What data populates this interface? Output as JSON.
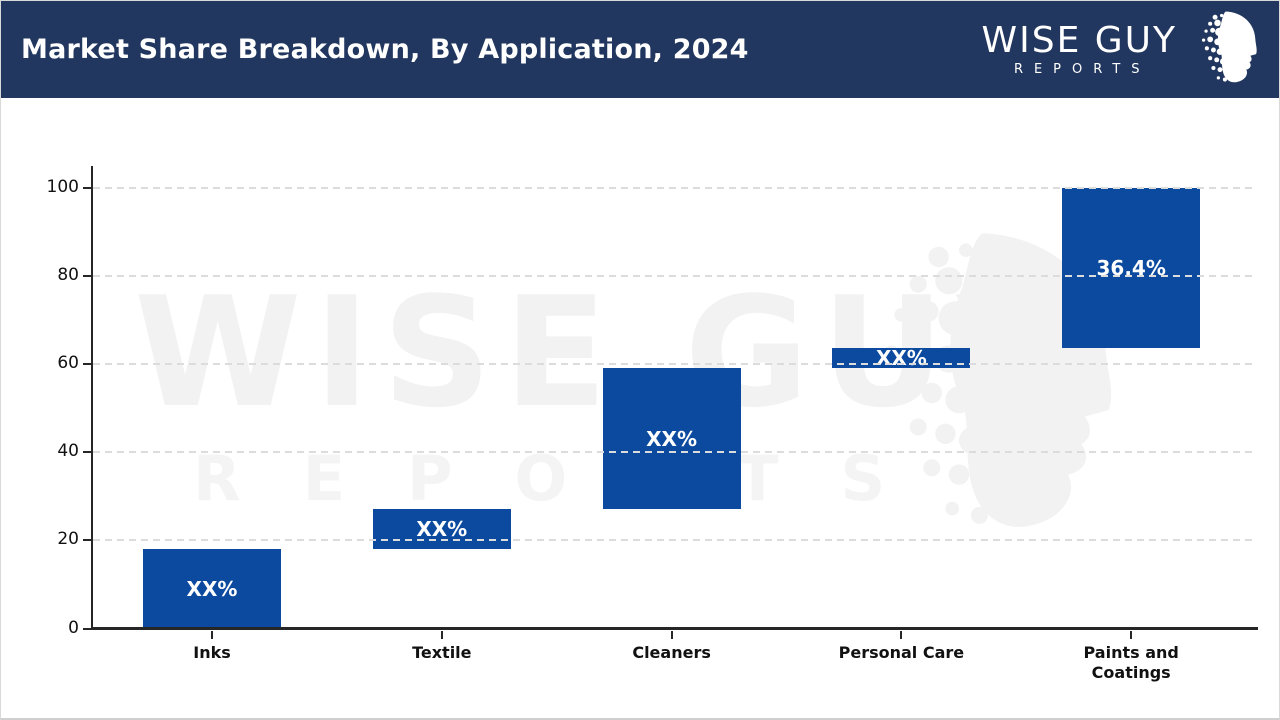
{
  "header": {
    "title": "Market Share Breakdown, By Application, 2024",
    "logo": {
      "name": "WISE GUY",
      "sub": "REPORTS"
    }
  },
  "watermark": {
    "line1": "WISE GUY",
    "line2": "REPORTS"
  },
  "chart_data": {
    "type": "bar",
    "variant": "waterfall",
    "title": "Market Share Breakdown, By Application, 2024",
    "xlabel": "",
    "ylabel": "",
    "ylim": [
      0,
      105
    ],
    "yticks": [
      0,
      20,
      40,
      60,
      80,
      100
    ],
    "grid": "horizontal-dashed",
    "legend": "none",
    "categories": [
      "Inks",
      "Textile",
      "Cleaners",
      "Personal Care",
      "Paints and Coatings"
    ],
    "segments": [
      {
        "category": "Inks",
        "start": 0,
        "end": 18,
        "value": 18,
        "value_label": "XX%"
      },
      {
        "category": "Textile",
        "start": 18,
        "end": 27,
        "value": 9,
        "value_label": "XX%"
      },
      {
        "category": "Cleaners",
        "start": 27,
        "end": 59,
        "value": 32,
        "value_label": "XX%"
      },
      {
        "category": "Personal Care",
        "start": 59,
        "end": 63.6,
        "value": 4.6,
        "value_label": "XX%"
      },
      {
        "category": "Paints and Coatings",
        "start": 63.6,
        "end": 100,
        "value": 36.4,
        "value_label": "36.4%"
      }
    ],
    "colors": {
      "bar": "#0b4a9e",
      "bar_label": "#ffffff",
      "grid": "#dcdcdc",
      "axis": "#262626",
      "tick_label": "#111111"
    }
  },
  "colors": {
    "header_bg": "#22375f",
    "header_text": "#ffffff",
    "canvas_bg": "#ffffff",
    "watermark": "#f2f2f2"
  }
}
